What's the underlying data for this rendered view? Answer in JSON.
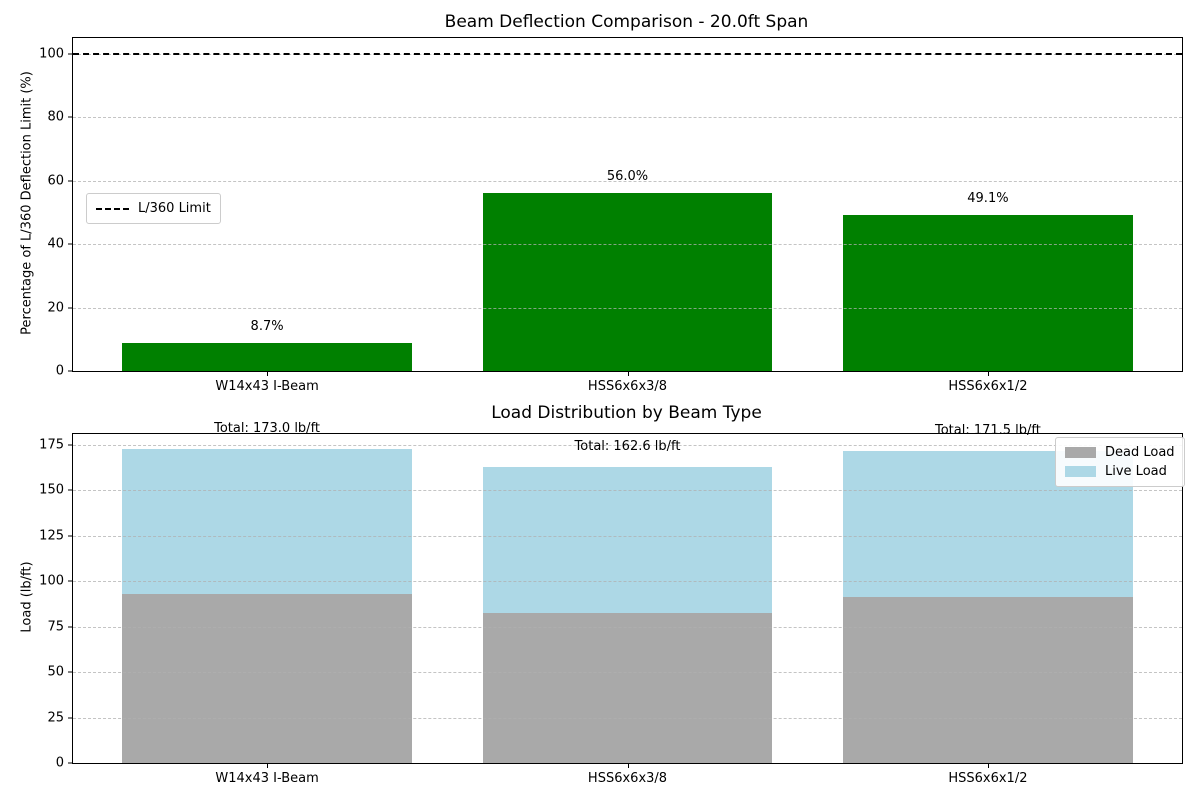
{
  "chart_data": [
    {
      "type": "bar",
      "title": "Beam Deflection Comparison - 20.0ft Span",
      "ylabel": "Percentage of L/360 Deflection Limit (%)",
      "xlabel": "",
      "categories": [
        "W14x43 I-Beam",
        "HSS6x6x3/8",
        "HSS6x6x1/2"
      ],
      "values": [
        8.7,
        56.0,
        49.1
      ],
      "bar_labels": [
        "8.7%",
        "56.0%",
        "49.1%"
      ],
      "bar_color": "#008000",
      "yticks": [
        0,
        20,
        40,
        60,
        80,
        100
      ],
      "ylim": [
        0,
        105
      ],
      "grid": "horizontal-dashed",
      "reference_line": {
        "value": 100,
        "label": "L/360 Limit",
        "color": "#000000",
        "linestyle": "dashed"
      },
      "legend": {
        "position": "center-left",
        "entries": [
          {
            "label": "L/360 Limit",
            "marker": "dashed-line",
            "color": "#000000"
          }
        ]
      }
    },
    {
      "type": "stacked-bar",
      "title": "Load Distribution by Beam Type",
      "ylabel": "Load (lb/ft)",
      "xlabel": "",
      "categories": [
        "W14x43 I-Beam",
        "HSS6x6x3/8",
        "HSS6x6x1/2"
      ],
      "series": [
        {
          "name": "Dead Load",
          "color": "#A9A9A9",
          "values": [
            93.0,
            82.6,
            91.5
          ]
        },
        {
          "name": "Live Load",
          "color": "#ADD8E6",
          "values": [
            80.0,
            80.0,
            80.0
          ]
        }
      ],
      "totals": [
        173.0,
        162.6,
        171.5
      ],
      "total_labels": [
        "Total: 173.0 lb/ft",
        "Total: 162.6 lb/ft",
        "Total: 171.5 lb/ft"
      ],
      "yticks": [
        0,
        25,
        50,
        75,
        100,
        125,
        150,
        175
      ],
      "ylim": [
        0,
        181
      ],
      "grid": "horizontal-dashed",
      "legend": {
        "position": "top-right",
        "entries": [
          {
            "label": "Dead Load",
            "marker": "square",
            "color": "#A9A9A9"
          },
          {
            "label": "Live Load",
            "marker": "square",
            "color": "#ADD8E6"
          }
        ]
      }
    }
  ]
}
